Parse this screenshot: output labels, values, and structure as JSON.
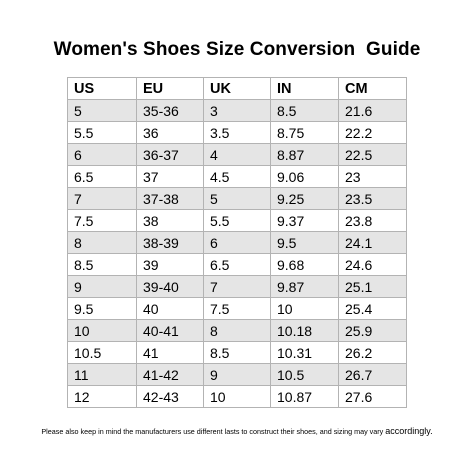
{
  "title": "Women's Shoes Size Conversion  Guide",
  "table": {
    "headers": [
      "US",
      "EU",
      "UK",
      "IN",
      "CM"
    ],
    "rows": [
      [
        "5",
        "35-36",
        "3",
        "8.5",
        "21.6"
      ],
      [
        "5.5",
        "36",
        "3.5",
        "8.75",
        "22.2"
      ],
      [
        "6",
        "36-37",
        "4",
        "8.87",
        "22.5"
      ],
      [
        "6.5",
        "37",
        "4.5",
        "9.06",
        "23"
      ],
      [
        "7",
        "37-38",
        "5",
        "9.25",
        "23.5"
      ],
      [
        "7.5",
        "38",
        "5.5",
        "9.37",
        "23.8"
      ],
      [
        "8",
        "38-39",
        "6",
        "9.5",
        "24.1"
      ],
      [
        "8.5",
        "39",
        "6.5",
        "9.68",
        "24.6"
      ],
      [
        "9",
        "39-40",
        "7",
        "9.87",
        "25.1"
      ],
      [
        "9.5",
        "40",
        "7.5",
        "10",
        "25.4"
      ],
      [
        "10",
        "40-41",
        "8",
        "10.18",
        "25.9"
      ],
      [
        "10.5",
        "41",
        "8.5",
        "10.31",
        "26.2"
      ],
      [
        "11",
        "41-42",
        "9",
        "10.5",
        "26.7"
      ],
      [
        "12",
        "42-43",
        "10",
        "10.87",
        "27.6"
      ]
    ]
  },
  "note": {
    "text": "Please also keep in mind the manufacturers use different lasts to construct their shoes, and sizing may vary ",
    "emphasis": "accordingly."
  },
  "colors": {
    "stripe": "#e5e5e5",
    "border": "#b3b3b3",
    "text": "#000000"
  }
}
